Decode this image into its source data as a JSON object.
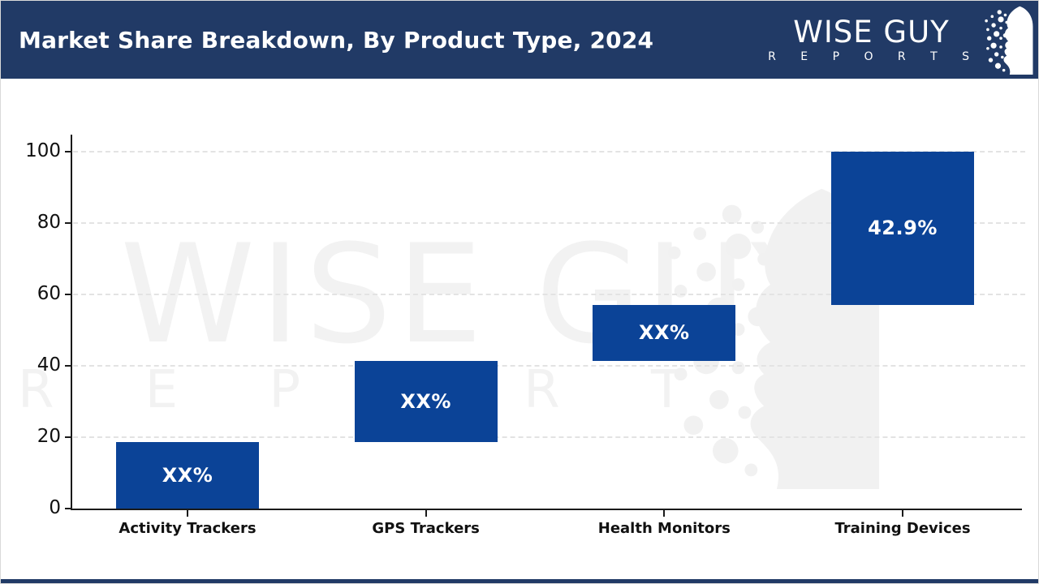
{
  "header": {
    "title": "Market Share Breakdown, By Product Type, 2024",
    "bg_color": "#213a66",
    "text_color": "#ffffff",
    "logo": {
      "line1": "WISE GUY",
      "line2": "R E P O R T S"
    }
  },
  "watermark": {
    "line1": "WISE GUY",
    "line2": "R E P O R T S",
    "color": "#f2f2f2"
  },
  "footer": {
    "bar_color": "#213a66"
  },
  "chart_data": {
    "type": "bar",
    "subtype": "waterfall",
    "title": "Market Share Breakdown, By Product Type, 2024",
    "xlabel": "",
    "ylabel": "",
    "categories": [
      "Activity Trackers",
      "GPS Trackers",
      "Health Monitors",
      "Training Devices"
    ],
    "segments": [
      {
        "category": "Activity Trackers",
        "start": 0,
        "end": 18.6,
        "value": 18.6,
        "label": "XX%"
      },
      {
        "category": "GPS Trackers",
        "start": 18.6,
        "end": 41.3,
        "value": 22.7,
        "label": "XX%"
      },
      {
        "category": "Health Monitors",
        "start": 41.3,
        "end": 57.1,
        "value": 15.8,
        "label": "XX%"
      },
      {
        "category": "Training Devices",
        "start": 57.1,
        "end": 100,
        "value": 42.9,
        "label": "42.9%"
      }
    ],
    "y_ticks": [
      0,
      20,
      40,
      60,
      80,
      100
    ],
    "ylim": [
      0,
      104.7
    ],
    "grid": "horizontal dashed",
    "legend": "none",
    "bar_color": "#0b4397",
    "bar_label_color": "#ffffff",
    "grid_color": "#e3e3e3",
    "axis_color": "#1a1a1a"
  }
}
